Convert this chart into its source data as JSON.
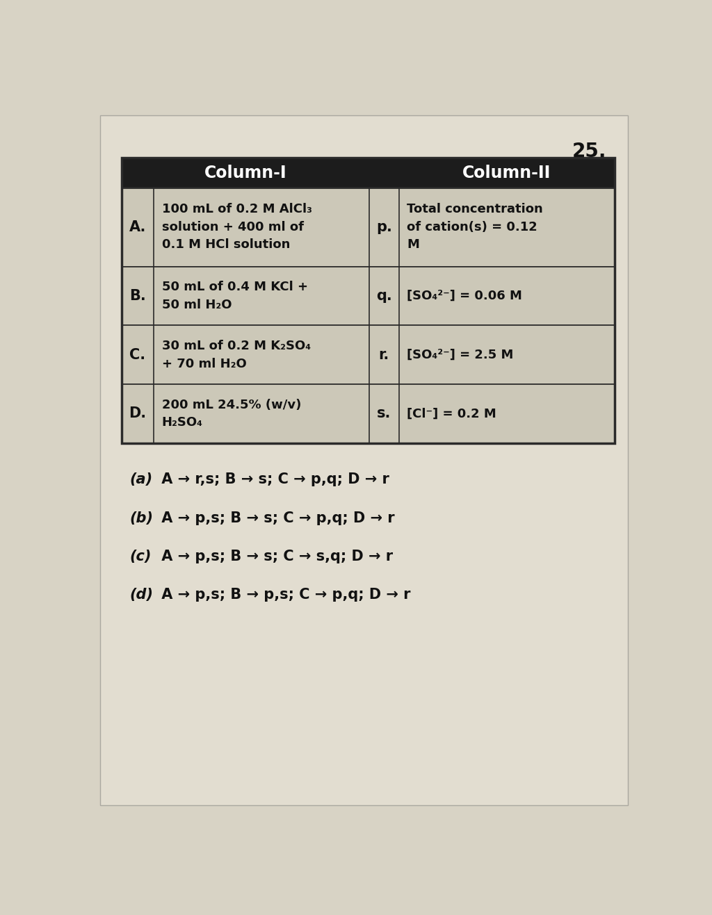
{
  "question_number": "25.",
  "col1_header": "Column-I",
  "col2_header": "Column-II",
  "table_rows": [
    {
      "label": "A.",
      "col1": "100 mL of 0.2 M AlCl₃\nsolution + 400 ml of\n0.1 M HCl solution",
      "match": "p.",
      "col2": "Total concentration\nof cation(s) = 0.12\nM"
    },
    {
      "label": "B.",
      "col1": "50 mL of 0.4 M KCl +\n50 ml H₂O",
      "match": "q.",
      "col2": "[SO₄²⁻] = 0.06 M"
    },
    {
      "label": "C.",
      "col1": "30 mL of 0.2 M K₂SO₄\n+ 70 ml H₂O",
      "match": "r.",
      "col2": "[SO₄²⁻] = 2.5 M"
    },
    {
      "label": "D.",
      "col1": "200 mL 24.5% (w/v)\nH₂SO₄",
      "match": "s.",
      "col2": "[Cl⁻] = 0.2 M"
    }
  ],
  "answers": [
    [
      "(a)",
      " A → r,s; B → s; C → p,q; D → r"
    ],
    [
      "(b)",
      " A → p,s; B → s; C → p,q; D → r"
    ],
    [
      "(c)",
      " A → p,s; B → s; C → s,q; D → r"
    ],
    [
      "(d)",
      " A → p,s; B → p,s; C → p,q; D → r"
    ]
  ],
  "bg_color": "#d8d3c5",
  "paper_color": "#e2ddd0",
  "table_bg": "#ccc8b8",
  "header_bg": "#1c1c1c",
  "header_fg": "#ffffff",
  "border_color": "#2a2a2a",
  "text_color": "#111111"
}
